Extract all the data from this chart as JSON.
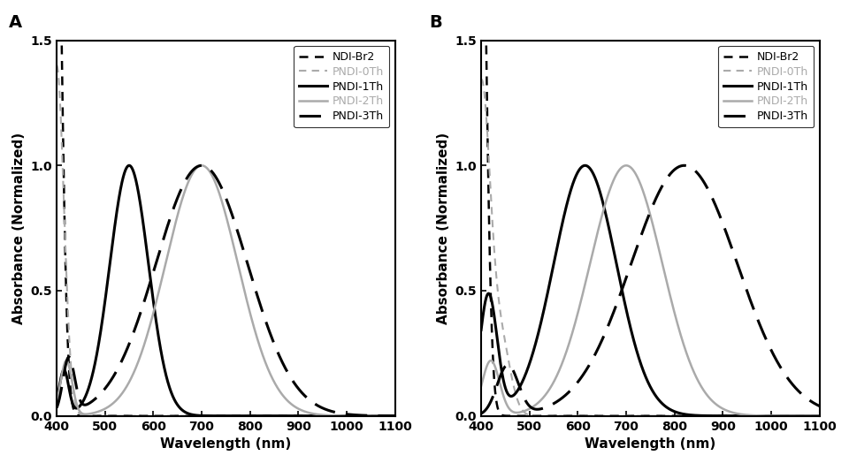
{
  "panel_A_label": "A",
  "panel_B_label": "B",
  "xlabel": "Wavelength (nm)",
  "ylabel": "Absorbance (Normalized)",
  "xlim": [
    400,
    1100
  ],
  "ylim": [
    0,
    1.5
  ],
  "xticks": [
    400,
    500,
    600,
    700,
    800,
    900,
    1000,
    1100
  ],
  "yticks": [
    0,
    0.5,
    1.0,
    1.5
  ],
  "legend_labels": [
    "NDI-Br2",
    "PNDI-0Th",
    "PNDI-1Th",
    "PNDI-2Th",
    "PNDI-3Th"
  ],
  "colors": {
    "NDI-Br2": "#000000",
    "PNDI-0Th": "#aaaaaa",
    "PNDI-1Th": "#000000",
    "PNDI-2Th": "#aaaaaa",
    "PNDI-3Th": "#000000"
  },
  "linestyles": {
    "NDI-Br2": "--",
    "PNDI-0Th": "--",
    "PNDI-1Th": "-",
    "PNDI-2Th": "-",
    "PNDI-3Th": "--"
  },
  "linewidths": {
    "NDI-Br2": 1.8,
    "PNDI-0Th": 1.5,
    "PNDI-1Th": 2.2,
    "PNDI-2Th": 1.8,
    "PNDI-3Th": 2.2
  },
  "background_color": "#ffffff"
}
